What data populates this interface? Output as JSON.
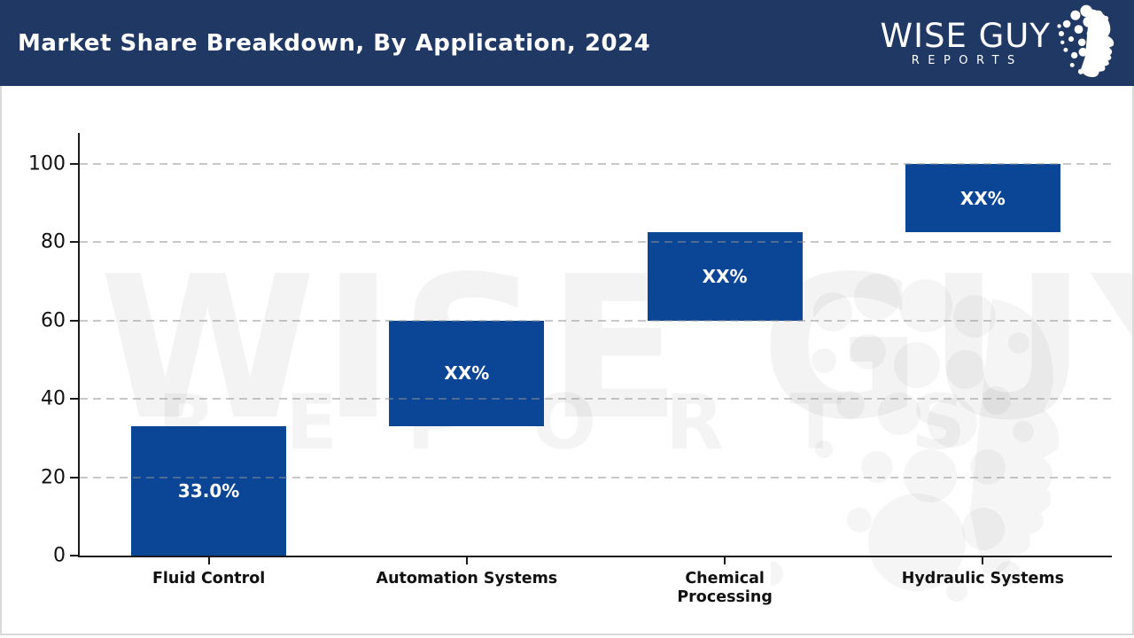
{
  "header": {
    "title": "Market Share Breakdown, By Application, 2024",
    "bg_color": "#1f3864",
    "logo": {
      "line1": "WISE GUY",
      "line2": "REPORTS"
    }
  },
  "watermark": {
    "line1": "WISE GUY",
    "line2": "REPORTS"
  },
  "chart_data": {
    "type": "bar",
    "subtype": "waterfall",
    "title": "Market Share Breakdown, By Application, 2024",
    "categories": [
      "Fluid Control",
      "Automation Systems",
      "Chemical\nProcessing",
      "Hydraulic Systems"
    ],
    "segments": [
      {
        "category": "Fluid Control",
        "start": 0,
        "end": 33.0,
        "label": "33.0%"
      },
      {
        "category": "Automation Systems",
        "start": 33.0,
        "end": 60.0,
        "label": "XX%"
      },
      {
        "category": "Chemical Processing",
        "start": 60.0,
        "end": 82.5,
        "label": "XX%"
      },
      {
        "category": "Hydraulic Systems",
        "start": 82.5,
        "end": 100.0,
        "label": "XX%"
      }
    ],
    "ylim": [
      0,
      100
    ],
    "yticks": [
      0,
      20,
      40,
      60,
      80,
      100
    ],
    "xlabel": "",
    "ylabel": "",
    "grid": "horizontal-dashed",
    "legend": "none",
    "bar_color": "#0b4596",
    "bar_label_color": "#ffffff",
    "axis_color": "#1a1a1a"
  }
}
